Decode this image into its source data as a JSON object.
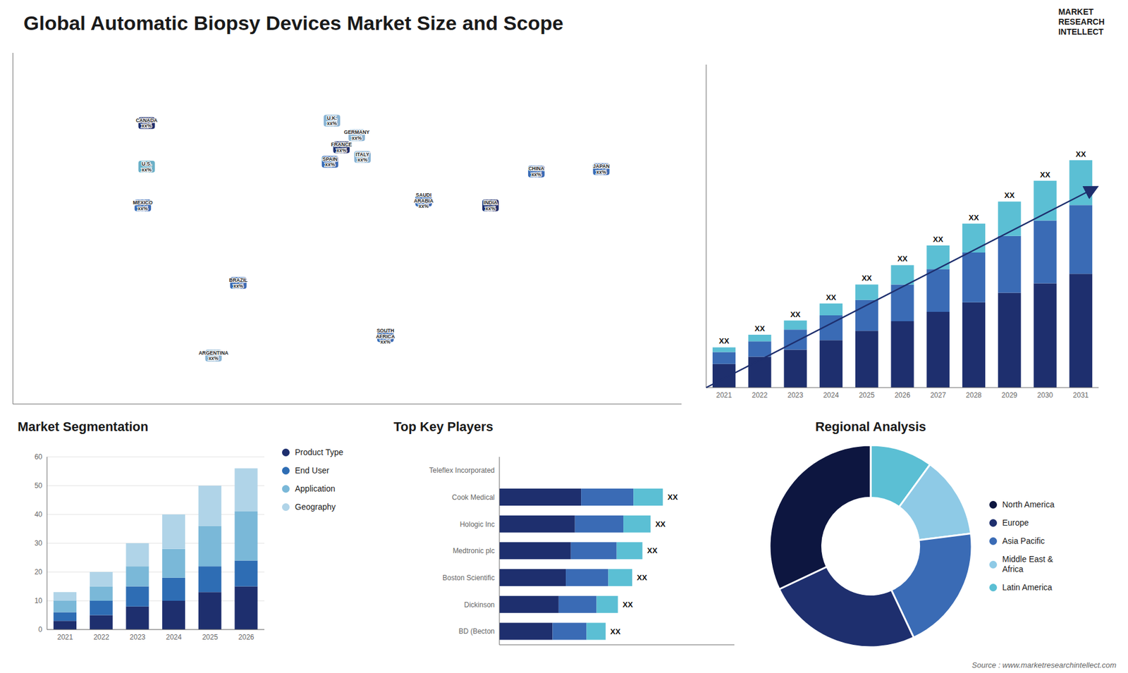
{
  "title": "Global Automatic Biopsy Devices Market Size and Scope",
  "annotations": [
    "MARKET",
    "RESEARCH",
    "INTELLECT",
    "Source : www.marketresearchintellect.com"
  ],
  "chart_data": [
    {
      "type": "map",
      "categories": [
        "CANADA\nxx%",
        "U.S.\nxx%",
        "MEXICO\nxx%",
        "BRAZIL\nxx%",
        "ARGENTINA\nxx%",
        "U.K.\nxx%",
        "FRANCE\nxx%",
        "SPAIN\nxx%",
        "GERMANY\nxx%",
        "ITALY\nxx%",
        "SAUDI\nARABIA\nxx%",
        "SOUTH\nAFRICA\nxx%",
        "CHINA\nxx%",
        "INDIA\nxx%",
        "JAPAN\nxx%"
      ],
      "x": [
        -100,
        -100,
        -102,
        -52,
        -65,
        -3,
        2,
        -4,
        10,
        13,
        45,
        25,
        104,
        80,
        138
      ],
      "y": [
        56,
        38,
        22,
        -10,
        -40,
        57,
        46,
        40,
        51,
        42,
        24,
        -32,
        36,
        22,
        37
      ],
      "colors": [
        "#1e2f6e",
        "#6ab0c8",
        "#3a6bb5",
        "#3a6bb5",
        "#8ab4d4",
        "#8ab4d4",
        "#1e2f6e",
        "#3a6bb5",
        "#8ab4d4",
        "#8ab4d4",
        "#3a6bb5",
        "#3a6bb5",
        "#3a6bb5",
        "#1e2f6e",
        "#3a6bb5"
      ],
      "xlim": [
        -170,
        180
      ],
      "ylim": [
        -60,
        85
      ],
      "tick_labels": false
    },
    {
      "type": "bar",
      "stacked": true,
      "categories": [
        "2021",
        "2022",
        "2023",
        "2024",
        "2025",
        "2026",
        "2027",
        "2028",
        "2029",
        "2030",
        "2031"
      ],
      "series": [
        {
          "color": "#1e2f6e",
          "values": [
            1.0,
            1.3,
            1.6,
            2.0,
            2.4,
            2.8,
            3.2,
            3.6,
            4.0,
            4.4,
            4.8
          ]
        },
        {
          "color": "#3a6bb5",
          "values": [
            0.5,
            0.65,
            0.85,
            1.05,
            1.3,
            1.55,
            1.8,
            2.1,
            2.4,
            2.65,
            2.9
          ]
        },
        {
          "color": "#5bbfd4",
          "values": [
            0.2,
            0.28,
            0.38,
            0.5,
            0.65,
            0.82,
            1.0,
            1.22,
            1.45,
            1.68,
            1.9
          ]
        }
      ],
      "ylim": [
        0,
        13.632
      ],
      "tick_labels": "x",
      "annotations": [
        "XX",
        "XX",
        "XX",
        "XX",
        "XX",
        "XX",
        "XX",
        "XX",
        "XX",
        "XX",
        "XX"
      ]
    },
    {
      "type": "bar",
      "title": "Market Segmentation",
      "stacked": true,
      "categories": [
        "2021",
        "2022",
        "2023",
        "2024",
        "2025",
        "2026"
      ],
      "series": [
        {
          "name": "Product Type",
          "color": "#1e2f6e",
          "values": [
            3,
            5,
            8,
            10,
            13,
            15
          ]
        },
        {
          "name": "End User",
          "color": "#2e6db4",
          "values": [
            3,
            5,
            7,
            8,
            9,
            9
          ]
        },
        {
          "name": "Application",
          "color": "#7ab8d8",
          "values": [
            4,
            5,
            7,
            10,
            14,
            17
          ]
        },
        {
          "name": "Geography",
          "color": "#b0d4e8",
          "values": [
            3,
            5,
            8,
            12,
            14,
            15
          ]
        }
      ],
      "ylim": [
        0,
        60
      ],
      "yticks": [
        0,
        10,
        20,
        30,
        40,
        50,
        60
      ],
      "grid": true,
      "legend": "right"
    },
    {
      "type": "bar",
      "title": "Top Key Players",
      "orientation": "horizontal",
      "stacked": true,
      "categories": [
        "Teleflex Incorporated",
        "Cook Medical",
        "Hologic Inc",
        "Medtronic plc",
        "Boston Scientific",
        " Dickinson",
        "BD (Becton"
      ],
      "series": [
        {
          "color": "#1e2f6e",
          "values": [
            0,
            40,
            37,
            35,
            32.5,
            29,
            26
          ]
        },
        {
          "color": "#3a6bb5",
          "values": [
            0,
            25.6,
            23.68,
            22.4,
            20.8,
            18.56,
            16.64
          ]
        },
        {
          "color": "#5bbfd4",
          "values": [
            0,
            14.4,
            13.32,
            12.6,
            11.7,
            10.44,
            9.36
          ]
        }
      ],
      "xlim": [
        0,
        115
      ],
      "tick_labels": "y",
      "annotations": [
        null,
        "XX",
        "XX",
        "XX",
        "XX",
        "XX",
        "XX"
      ]
    },
    {
      "type": "donut",
      "title": "Regional Analysis",
      "categories": [
        "Latin America",
        "Middle East &\nAfrica",
        "Asia Pacific",
        "Europe",
        "North America"
      ],
      "values": [
        0.1,
        0.13,
        0.2,
        0.25,
        0.32
      ],
      "colors": [
        "#5bbfd4",
        "#8ecae6",
        "#3a6bb5",
        "#1e2f6e",
        "#0d1640"
      ],
      "legend": "right"
    }
  ]
}
